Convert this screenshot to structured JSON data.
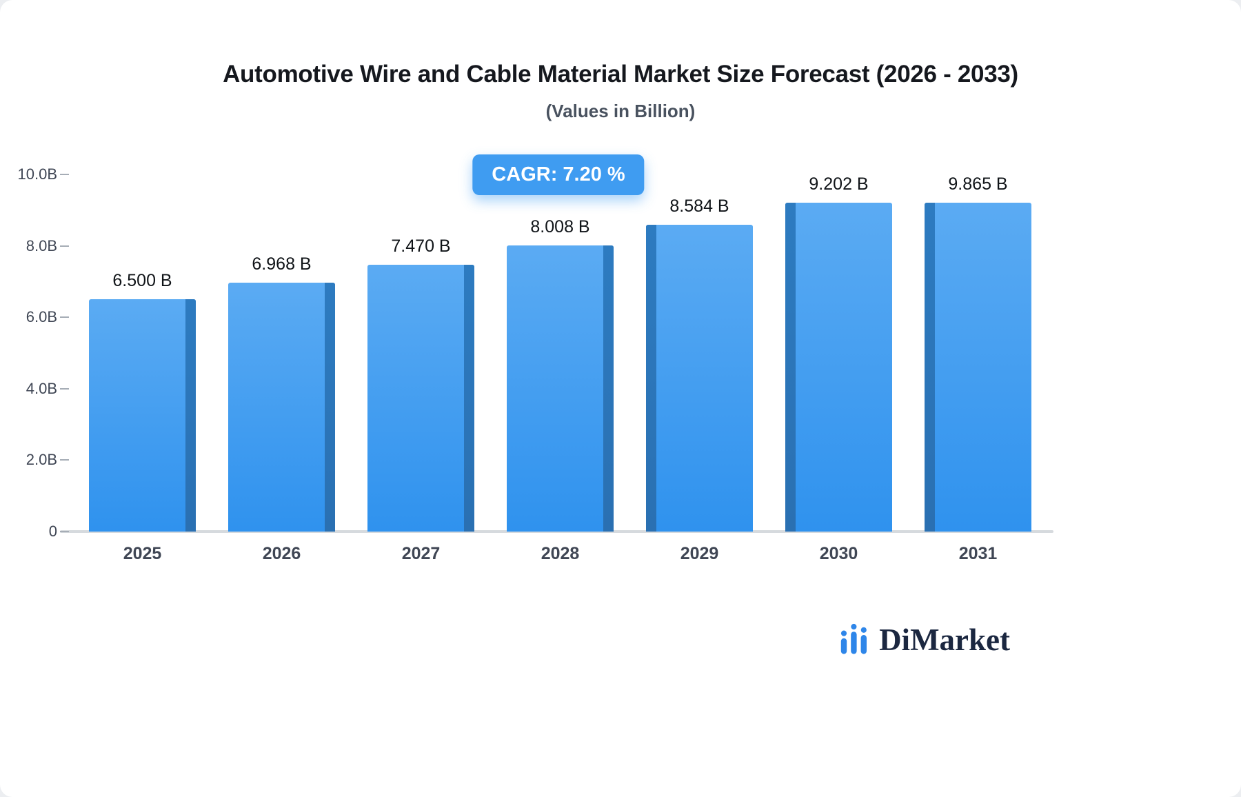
{
  "chart_data": {
    "type": "bar",
    "title": "Automotive Wire and Cable Material Market Size Forecast (2026 - 2033)",
    "subtitle": "(Values in Billion)",
    "badge": "CAGR: 7.20 %",
    "categories": [
      "2025",
      "2026",
      "2027",
      "2028",
      "2029",
      "2030",
      "2031"
    ],
    "values": [
      6.5,
      6.968,
      7.47,
      8.008,
      8.584,
      9.202,
      9.865
    ],
    "value_labels": [
      "6.500 B",
      "6.968 B",
      "7.470 B",
      "8.008 B",
      "8.584 B",
      "9.202 B",
      "9.865 B"
    ],
    "xlabel": "",
    "ylabel": "",
    "ylim": [
      0,
      10
    ],
    "yticks": [
      0,
      2,
      4,
      6,
      8,
      10
    ],
    "ytick_labels": [
      "0",
      "2.0B",
      "4.0B",
      "6.0B",
      "8.0B",
      "10.0B"
    ],
    "grid": false,
    "legend_position": "none"
  },
  "branding": {
    "logo_text": "DiMarket",
    "logo_icon": "bar-chart-logo-icon"
  },
  "colors": {
    "bar_top": "#5babf3",
    "bar_bottom": "#2f92ee",
    "bar_side": "#2d7bc0",
    "badge": "#3f9cf1",
    "axis_text": "#3f4654",
    "title": "#15181e",
    "subtitle": "#49525f",
    "baseline": "#d6dade",
    "logo_blue": "#2e86e9",
    "logo_text": "#1b2740"
  }
}
